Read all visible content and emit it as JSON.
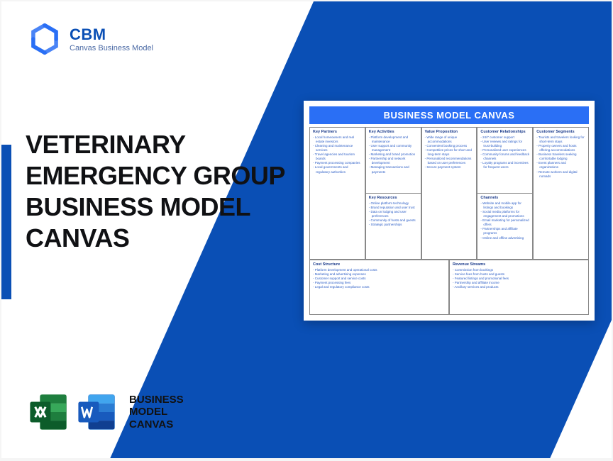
{
  "colors": {
    "brand_blue": "#0a4fb5",
    "canvas_header": "#2a6ff5",
    "canvas_text": "#2a5cc5",
    "canvas_heading": "#1a3a8a",
    "excel_green": "#1e7e3e",
    "excel_green_dark": "#0c5c2a",
    "word_blue": "#2b7cd3",
    "word_blue_dark": "#185abd",
    "title_color": "#101114"
  },
  "logo": {
    "brand": "CBM",
    "sub": "Canvas Business Model"
  },
  "title": "VETERINARY EMERGENCY GROUP BUSINESS MODEL CANVAS",
  "bottom_label": "BUSINESS\nMODEL\nCANVAS",
  "canvas": {
    "title": "BUSINESS MODEL CANVAS",
    "blocks": {
      "key_partners": {
        "heading": "Key Partners",
        "items": [
          "Local homeowners and real estate investors",
          "Cleaning and maintenance services",
          "Travel agencies and tourism boards",
          "Payment processing companies",
          "Local governments and regulatory authorities"
        ]
      },
      "key_activities": {
        "heading": "Key Activities",
        "items": [
          "Platform development and maintenance",
          "User support and community management",
          "Marketing and brand promotion",
          "Partnership and network development",
          "Managing transactions and payments"
        ]
      },
      "key_resources": {
        "heading": "Key Resources",
        "items": [
          "Online platform technology",
          "Brand reputation and user trust",
          "Data on lodging and user preferences",
          "Community of hosts and guests",
          "Strategic partnerships"
        ]
      },
      "value_proposition": {
        "heading": "Value Proposition",
        "items": [
          "Wide range of unique accommodations",
          "Convenient booking process",
          "Competitive prices for short and long-term stays",
          "Personalized recommendations based on user preferences",
          "Secure payment system"
        ]
      },
      "customer_relationships": {
        "heading": "Customer Relationships",
        "items": [
          "24/7 customer support",
          "User reviews and ratings for trust-building",
          "Personalized user experiences",
          "Community forums and feedback channels",
          "Loyalty programs and incentives for frequent users"
        ]
      },
      "channels": {
        "heading": "Channels",
        "items": [
          "Website and mobile app for listings and bookings",
          "Social media platforms for engagement and promotions",
          "Email marketing for personalized offers",
          "Partnerships and affiliate programs",
          "Online and offline advertising"
        ]
      },
      "customer_segments": {
        "heading": "Customer Segments",
        "items": [
          "Tourists and travelers looking for short-term stays",
          "Property owners and hosts offering accommodations",
          "Business travelers seeking comfortable lodging",
          "Event planners and organizations",
          "Remote workers and digital nomads"
        ]
      },
      "cost_structure": {
        "heading": "Cost Structure",
        "items": [
          "Platform development and operational costs",
          "Marketing and advertising expenses",
          "Customer support and service costs",
          "Payment processing fees",
          "Legal and regulatory compliance costs"
        ]
      },
      "revenue_streams": {
        "heading": "Revenue Streams",
        "items": [
          "Commission from bookings",
          "Service fees from hosts and guests",
          "Featured listings and promotional fees",
          "Partnership and affiliate income",
          "Ancillary services and products"
        ]
      }
    }
  }
}
